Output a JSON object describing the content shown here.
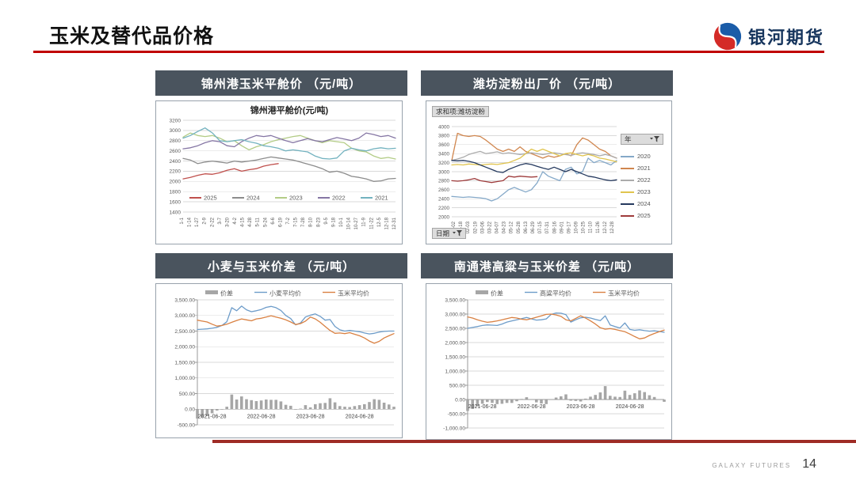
{
  "page": {
    "title": "玉米及替代品价格",
    "logo_text": "银河期货",
    "footer_brand": "GALAXY FUTURES",
    "page_number": "14"
  },
  "colors": {
    "panel_header_bg": "#4a545e",
    "title_rule": "#c00000",
    "footer_rule": "#9e2b25",
    "grid": "#d9d9d9",
    "axis_text": "#595959",
    "bar_gray": "#a6a6a6"
  },
  "chart_data": [
    {
      "id": "jinzhou",
      "type": "line",
      "panel_header": "锦州港玉米平舱价 （元/吨）",
      "title": "锦州港平舱价(元/吨)",
      "ylim": [
        1400,
        3200
      ],
      "y_ticks": [
        "3200",
        "3000",
        "2800",
        "2600",
        "2400",
        "2200",
        "2000",
        "1800",
        "1600",
        "1400"
      ],
      "x_ticks": [
        "1-1",
        "1-14",
        "1-27",
        "2-9",
        "2-22",
        "3-7",
        "3-20",
        "4-2",
        "4-15",
        "4-28",
        "5-11",
        "5-24",
        "6-6",
        "6-19",
        "7-2",
        "7-15",
        "7-28",
        "8-10",
        "8-23",
        "9-5",
        "9-18",
        "10-1",
        "10-14",
        "10-27",
        "11-9",
        "11-22",
        "12-5",
        "12-18",
        "12-31"
      ],
      "legend_position": "bottom-row",
      "grid": true,
      "series": [
        {
          "name": "2025",
          "color": "#c0504d",
          "values": [
            2050,
            2080,
            2120,
            2150,
            2140,
            2170,
            2220,
            2250,
            2200,
            2230,
            2250,
            2300,
            2330,
            2350,
            null,
            null,
            null,
            null,
            null,
            null,
            null,
            null,
            null,
            null,
            null,
            null,
            null,
            null,
            null,
            null
          ]
        },
        {
          "name": "2024",
          "color": "#8c8c8c",
          "values": [
            2450,
            2420,
            2350,
            2380,
            2400,
            2380,
            2360,
            2400,
            2380,
            2400,
            2420,
            2450,
            2480,
            2460,
            2440,
            2420,
            2380,
            2340,
            2300,
            2250,
            2180,
            2200,
            2160,
            2100,
            2080,
            2050,
            2000,
            2010,
            2050,
            2060
          ]
        },
        {
          "name": "2023",
          "color": "#b3cc86",
          "values": [
            2870,
            2950,
            2900,
            2880,
            2900,
            2850,
            2780,
            2800,
            2700,
            2620,
            2680,
            2720,
            2780,
            2820,
            2850,
            2880,
            2900,
            2850,
            2800,
            2760,
            2800,
            2780,
            2760,
            2650,
            2600,
            2580,
            2500,
            2450,
            2470,
            2440
          ]
        },
        {
          "name": "2022",
          "color": "#8576a4",
          "values": [
            2640,
            2660,
            2700,
            2760,
            2800,
            2780,
            2700,
            2680,
            2780,
            2850,
            2900,
            2880,
            2900,
            2850,
            2800,
            2760,
            2800,
            2840,
            2800,
            2780,
            2820,
            2860,
            2830,
            2800,
            2850,
            2950,
            2920,
            2880,
            2900,
            2850
          ]
        },
        {
          "name": "2021",
          "color": "#72b2bf",
          "values": [
            2850,
            2900,
            2980,
            3050,
            2950,
            2800,
            2780,
            2800,
            2820,
            2780,
            2750,
            2700,
            2680,
            2650,
            2600,
            2620,
            2600,
            2580,
            2500,
            2450,
            2440,
            2460,
            2600,
            2650,
            2620,
            2600,
            2640,
            2660,
            2640,
            2650
          ]
        }
      ]
    },
    {
      "id": "weifang",
      "type": "line",
      "panel_header": "潍坊淀粉出厂价 （元/吨）",
      "pivot_field_label": "求和项:潍坊淀粉",
      "year_filter_label": "年",
      "date_filter_label": "日期",
      "ylim": [
        2000,
        4000
      ],
      "y_ticks": [
        "4000",
        "3800",
        "3600",
        "3400",
        "3200",
        "3000",
        "2800",
        "2600",
        "2400",
        "2200",
        "2000"
      ],
      "x_ticks": [
        "01-02",
        "01-18",
        "02-03",
        "02-19",
        "03-06",
        "03-22",
        "04-07",
        "04-23",
        "05-12",
        "05-28",
        "06-13",
        "06-29",
        "07-15",
        "07-31",
        "08-16",
        "09-01",
        "09-17",
        "10-09",
        "10-25",
        "11-10",
        "11-26",
        "12-12",
        "12-28"
      ],
      "legend_position": "right-column",
      "grid": true,
      "series": [
        {
          "name": "2020",
          "color": "#84a8c8",
          "values": [
            2450,
            2440,
            2430,
            2440,
            2430,
            2420,
            2400,
            2350,
            2400,
            2500,
            2600,
            2650,
            2600,
            2550,
            2600,
            2750,
            3000,
            2900,
            2850,
            2800,
            3050,
            3100,
            2950,
            3000,
            3300,
            3200,
            3250,
            3200,
            3150,
            3250
          ]
        },
        {
          "name": "2021",
          "color": "#d0864e",
          "values": [
            3250,
            3850,
            3800,
            3780,
            3800,
            3780,
            3700,
            3600,
            3500,
            3450,
            3500,
            3450,
            3550,
            3450,
            3400,
            3350,
            3300,
            3350,
            3320,
            3350,
            3400,
            3350,
            3600,
            3750,
            3700,
            3600,
            3500,
            3450,
            3350,
            3300
          ]
        },
        {
          "name": "2022",
          "color": "#ababab",
          "values": [
            3250,
            3280,
            3320,
            3380,
            3420,
            3450,
            3400,
            3420,
            3440,
            3400,
            3420,
            3400,
            3380,
            3400,
            3420,
            3400,
            3380,
            3400,
            3420,
            3400,
            3380,
            3360,
            3400,
            3420,
            3400,
            3380,
            3350,
            3380,
            3350,
            3300
          ]
        },
        {
          "name": "2023",
          "color": "#e0c44e",
          "values": [
            3150,
            3160,
            3150,
            3170,
            3160,
            3150,
            3160,
            3170,
            3160,
            3180,
            3200,
            3250,
            3300,
            3400,
            3500,
            3450,
            3500,
            3450,
            3400,
            3350,
            3400,
            3420,
            3380,
            3350,
            3380,
            3350,
            3300,
            3280,
            3250,
            3220
          ]
        },
        {
          "name": "2024",
          "color": "#25395e",
          "values": [
            3250,
            3240,
            3250,
            3230,
            3200,
            3150,
            3100,
            3050,
            3000,
            2980,
            3050,
            3100,
            3150,
            3180,
            3160,
            3120,
            3080,
            3050,
            3100,
            3050,
            3000,
            3050,
            3000,
            2950,
            2900,
            2880,
            2850,
            2820,
            2800,
            2820
          ]
        },
        {
          "name": "2025",
          "color": "#9e3b3b",
          "values": [
            2800,
            2790,
            2800,
            2820,
            2850,
            2800,
            2780,
            2760,
            2780,
            2800,
            2900,
            2880,
            2900,
            2890,
            2880,
            2890,
            null,
            null,
            null,
            null,
            null,
            null,
            null,
            null,
            null,
            null,
            null,
            null,
            null,
            null
          ]
        }
      ]
    },
    {
      "id": "wheat_corn_spread",
      "type": "bar+line",
      "panel_header": "小麦与玉米价差 （元/吨）",
      "ylim": [
        -500,
        3500
      ],
      "y_ticks": [
        "3,500.00",
        "3,000.00",
        "2,500.00",
        "2,000.00",
        "1,500.00",
        "1,000.00",
        "500.00",
        "0.00",
        "-500.00"
      ],
      "x_ticks": [
        "2021-06-28",
        "2022-06-28",
        "2023-06-28",
        "2024-06-28"
      ],
      "legend_position": "top-row",
      "grid": true,
      "bar_series": {
        "name": "价差",
        "color": "#a6a6a6",
        "values": [
          -300,
          -260,
          -220,
          -130,
          -40,
          0,
          80,
          470,
          310,
          410,
          320,
          290,
          260,
          280,
          310,
          300,
          300,
          250,
          140,
          110,
          -10,
          20,
          130,
          60,
          160,
          190,
          200,
          350,
          220,
          100,
          80,
          70,
          100,
          130,
          160,
          230,
          320,
          300,
          210,
          150,
          80
        ]
      },
      "series": [
        {
          "name": "小麦平均价",
          "color": "#6d9cc9",
          "values": [
            2550,
            2560,
            2570,
            2590,
            2620,
            2680,
            2800,
            3250,
            3150,
            3300,
            3180,
            3120,
            3150,
            3190,
            3260,
            3290,
            3250,
            3160,
            3000,
            2900,
            2700,
            2760,
            2950,
            3010,
            3050,
            2970,
            2850,
            2870,
            2650,
            2540,
            2500,
            2520,
            2500,
            2480,
            2440,
            2410,
            2430,
            2470,
            2490,
            2500,
            2500
          ]
        },
        {
          "name": "玉米平均价",
          "color": "#d98143",
          "values": [
            2850,
            2820,
            2790,
            2720,
            2660,
            2680,
            2720,
            2780,
            2840,
            2890,
            2860,
            2830,
            2890,
            2910,
            2950,
            2990,
            2950,
            2910,
            2860,
            2790,
            2710,
            2740,
            2820,
            2950,
            2890,
            2780,
            2650,
            2520,
            2430,
            2440,
            2420,
            2450,
            2400,
            2350,
            2280,
            2180,
            2110,
            2170,
            2280,
            2350,
            2420
          ]
        }
      ]
    },
    {
      "id": "sorghum_corn_spread",
      "type": "bar+line",
      "panel_header": "南通港高粱与玉米价差 （元/吨）",
      "ylim": [
        -1000,
        3500
      ],
      "y_ticks": [
        "3,500.00",
        "3,000.00",
        "2,500.00",
        "2,000.00",
        "1,500.00",
        "1,000.00",
        "500.00",
        "0.00",
        "-500.00",
        "-1,000.00"
      ],
      "x_ticks": [
        "2021-06-28",
        "2022-06-28",
        "2023-06-28",
        "2024-06-28"
      ],
      "legend_position": "top-row",
      "grid": true,
      "bar_series": {
        "name": "价差",
        "color": "#a6a6a6",
        "values": [
          -400,
          -330,
          -240,
          -150,
          -90,
          -120,
          -160,
          -150,
          -120,
          -120,
          -60,
          20,
          80,
          -10,
          -100,
          -140,
          -160,
          -10,
          70,
          110,
          180,
          -40,
          -50,
          -70,
          30,
          100,
          160,
          250,
          470,
          130,
          100,
          90,
          310,
          160,
          220,
          320,
          260,
          150,
          90,
          10,
          -80
        ]
      },
      "series": [
        {
          "name": "高粱平均价",
          "color": "#6d9cc9",
          "values": [
            2500,
            2530,
            2560,
            2600,
            2620,
            2610,
            2600,
            2650,
            2720,
            2760,
            2800,
            2840,
            2880,
            2830,
            2790,
            2800,
            2830,
            2990,
            3040,
            3030,
            2980,
            2720,
            2800,
            2870,
            2890,
            2860,
            2810,
            2770,
            2940,
            2620,
            2560,
            2510,
            2690,
            2460,
            2430,
            2450,
            2420,
            2400,
            2410,
            2390,
            2360
          ]
        },
        {
          "name": "玉米平均价",
          "color": "#d98143",
          "values": [
            2900,
            2860,
            2800,
            2750,
            2710,
            2730,
            2760,
            2800,
            2840,
            2880,
            2860,
            2820,
            2800,
            2840,
            2890,
            2940,
            2990,
            3000,
            2970,
            2920,
            2800,
            2760,
            2850,
            2940,
            2860,
            2760,
            2650,
            2520,
            2470,
            2490,
            2460,
            2420,
            2380,
            2300,
            2210,
            2130,
            2160,
            2250,
            2320,
            2380,
            2440
          ]
        }
      ]
    }
  ]
}
